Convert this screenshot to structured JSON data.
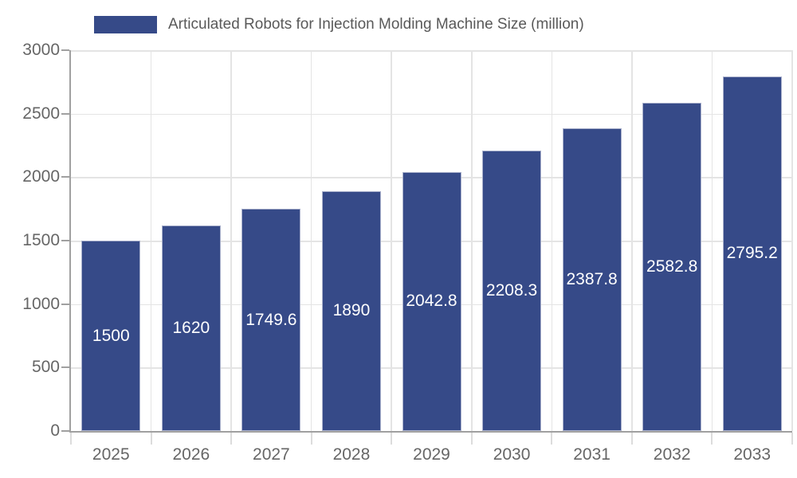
{
  "chart_data": {
    "type": "bar",
    "title": "Articulated Robots for Injection Molding Machine Size (million)",
    "categories": [
      "2025",
      "2026",
      "2027",
      "2028",
      "2029",
      "2030",
      "2031",
      "2032",
      "2033"
    ],
    "values": [
      1500,
      1620,
      1749.6,
      1890,
      2042.8,
      2208.3,
      2387.8,
      2582.8,
      2795.2
    ],
    "value_labels": [
      "1500",
      "1620",
      "1749.6",
      "1890",
      "2042.8",
      "2208.3",
      "2387.8",
      "2582.8",
      "2795.2"
    ],
    "xlabel": "",
    "ylabel": "",
    "ylim": [
      0,
      3000
    ],
    "yticks": [
      0,
      500,
      1000,
      1500,
      2000,
      2500,
      3000
    ],
    "grid": true,
    "legend_position": "top-left",
    "colors": {
      "bar": "#364a88",
      "bar_label": "#ffffff",
      "axis": "#a0a0a0",
      "grid": "#e4e4e4",
      "x_tick": "#dcdcdc",
      "tick_label": "#666666",
      "legend_text": "#595959",
      "background": "#ffffff"
    }
  }
}
